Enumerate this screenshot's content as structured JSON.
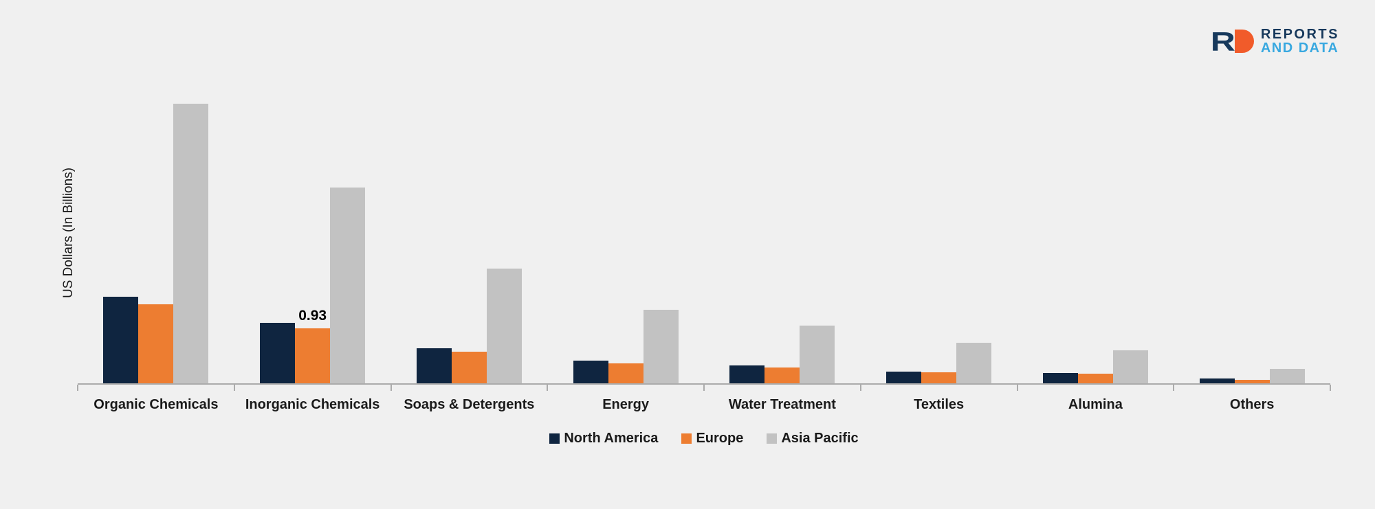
{
  "logo": {
    "mark_r": "R",
    "mark_d_shape": "solid-d",
    "line1": "REPORTS",
    "line2": "AND DATA",
    "navy": "#17395c",
    "blue": "#38a8e0",
    "orange": "#f15b2a"
  },
  "colors": {
    "background": "#f0f0f0",
    "axis": "#ababab",
    "text": "#1a1a1a"
  },
  "chart_data": {
    "type": "bar",
    "title": "",
    "xlabel": "",
    "ylabel": "US Dollars (In Billions)",
    "ylim": [
      0,
      5
    ],
    "grid": false,
    "legend_position": "bottom",
    "categories": [
      "Organic Chemicals",
      "Inorganic Chemicals",
      "Soaps & Detergents",
      "Energy",
      "Water Treatment",
      "Textiles",
      "Alumina",
      "Others"
    ],
    "series": [
      {
        "name": "North America",
        "color": "#0f2540",
        "values": [
          1.46,
          1.02,
          0.59,
          0.38,
          0.3,
          0.2,
          0.17,
          0.08
        ]
      },
      {
        "name": "Europe",
        "color": "#ed7d31",
        "values": [
          1.34,
          0.93,
          0.54,
          0.34,
          0.27,
          0.19,
          0.16,
          0.06
        ]
      },
      {
        "name": "Asia Pacific",
        "color": "#c2c2c2",
        "values": [
          4.73,
          3.31,
          1.94,
          1.24,
          0.98,
          0.69,
          0.56,
          0.24
        ]
      }
    ],
    "annotations": [
      {
        "category": "Inorganic Chemicals",
        "series": "Europe",
        "text": "0.93"
      }
    ]
  }
}
